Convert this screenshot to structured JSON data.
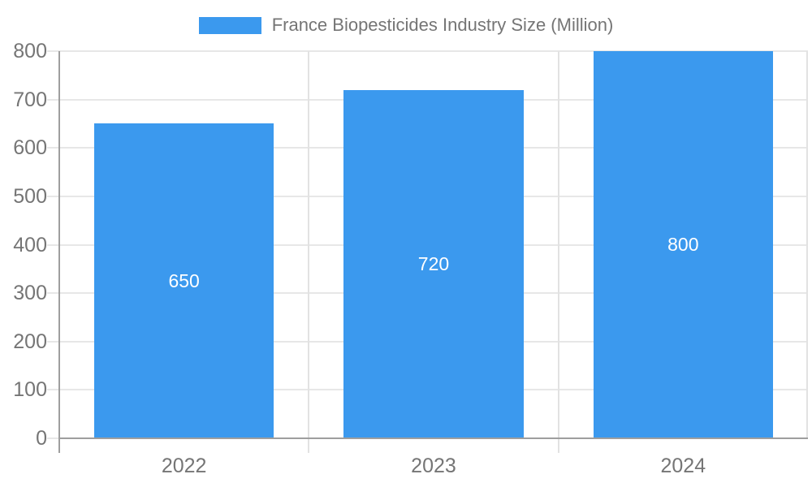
{
  "chart_data": {
    "type": "bar",
    "title": "France Biopesticides Industry Size (Million)",
    "categories": [
      "2022",
      "2023",
      "2024"
    ],
    "values": [
      650,
      720,
      800
    ],
    "xlabel": "",
    "ylabel": "",
    "ylim": [
      0,
      800
    ],
    "ytick_step": 100,
    "grid": true,
    "legend_position": "top",
    "bar_labels_visible": true,
    "colors": {
      "bar": "#3b99ee",
      "bar_label": "#ffffff",
      "axis_text": "#757575",
      "gridline": "#e7e7e7",
      "separator": "#e2e2e2",
      "axis_line": "#9e9e9e",
      "background": "#ffffff"
    }
  }
}
